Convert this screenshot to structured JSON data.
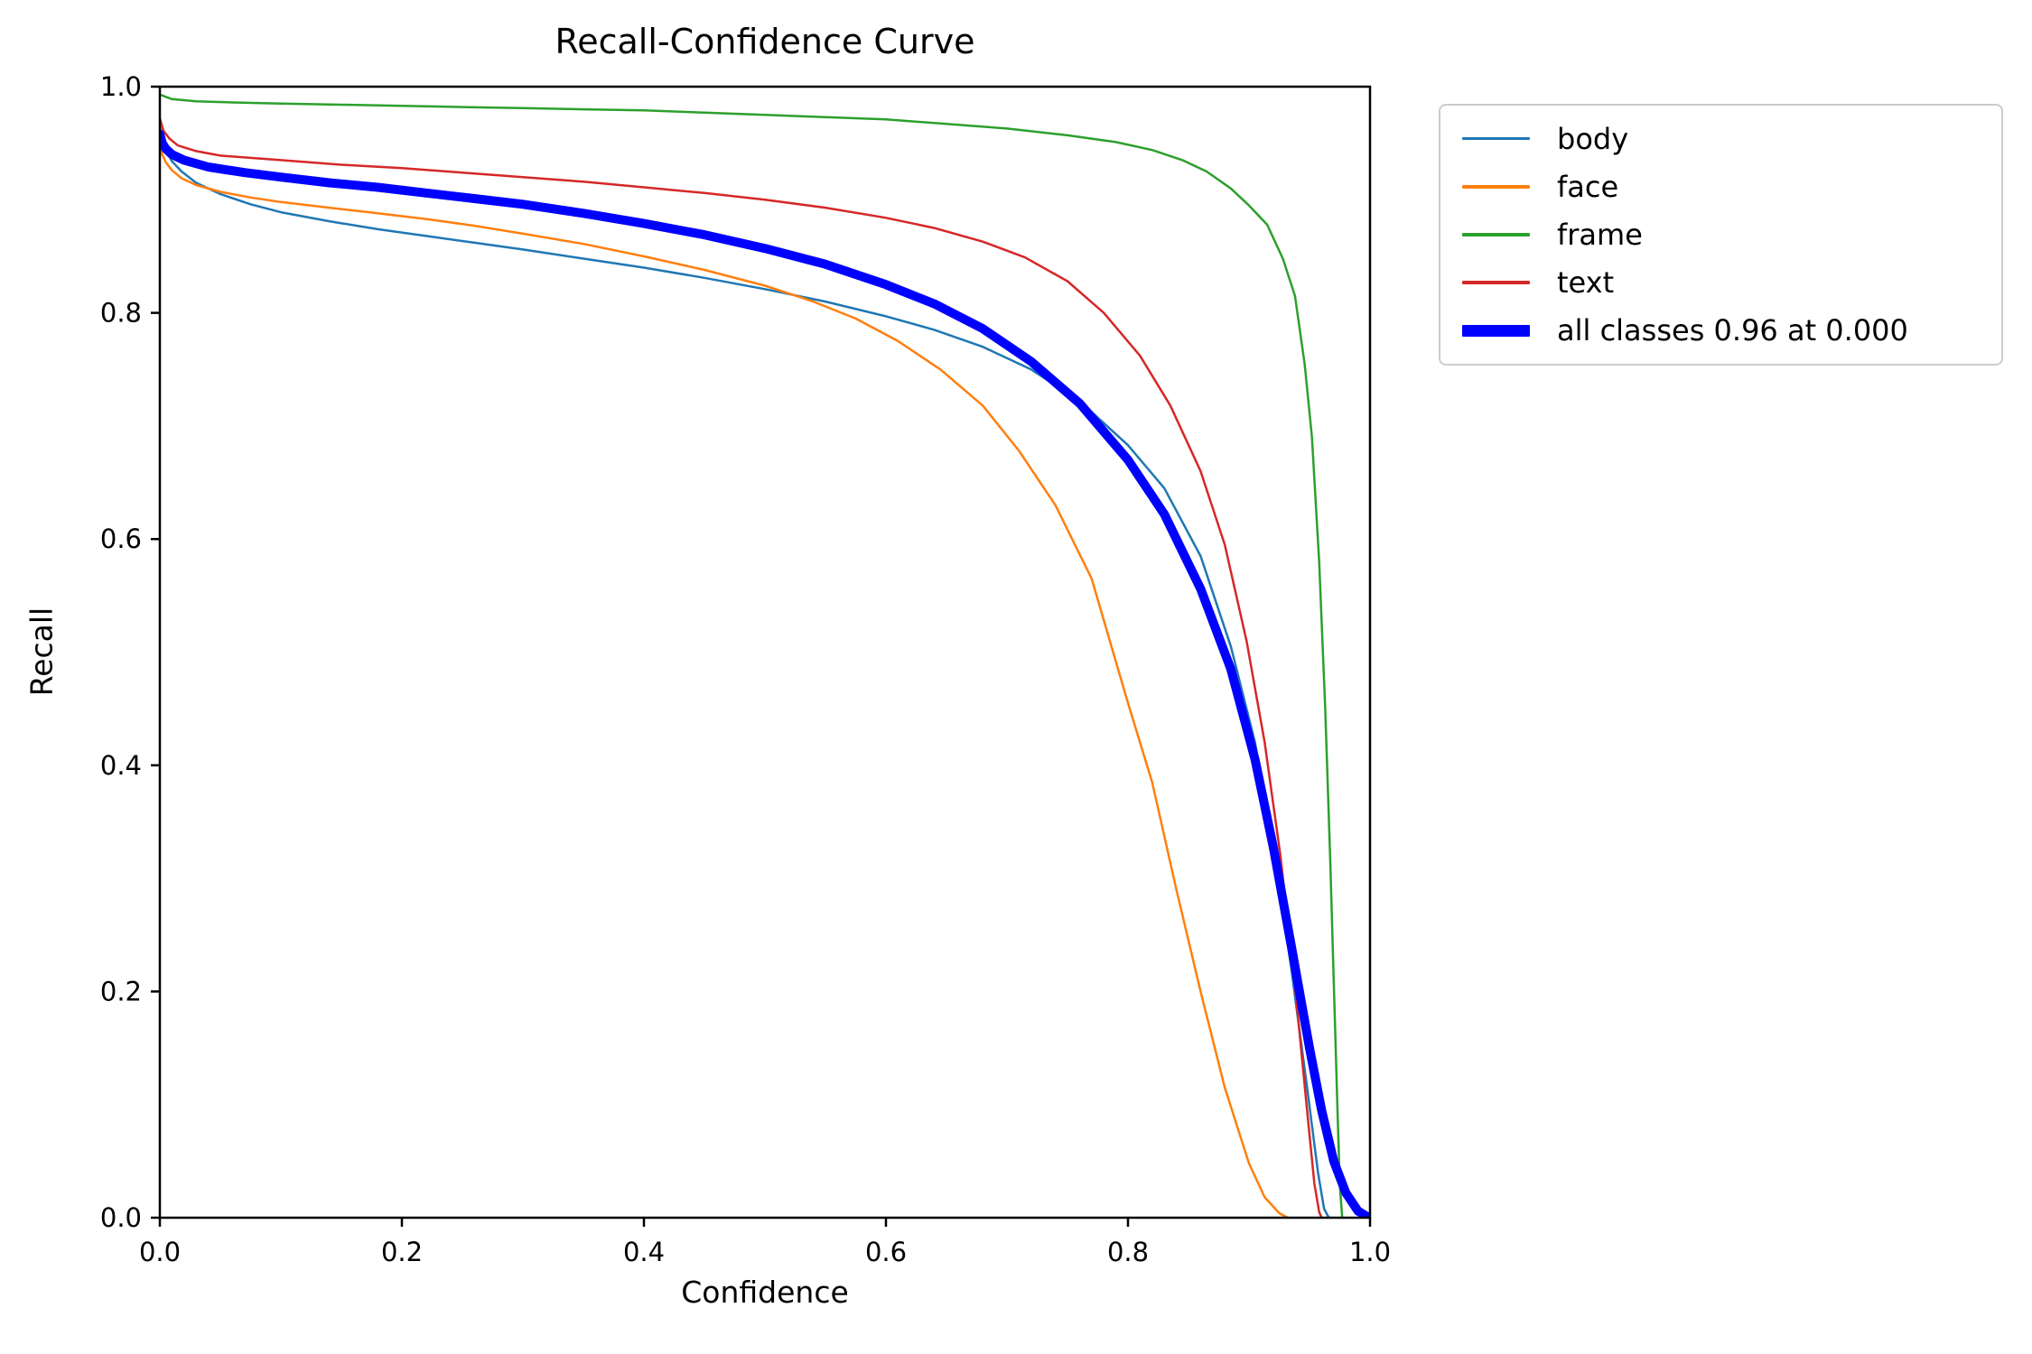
{
  "chart_data": {
    "type": "line",
    "title": "Recall-Confidence Curve",
    "xlabel": "Confidence",
    "ylabel": "Recall",
    "xlim": [
      0.0,
      1.0
    ],
    "ylim": [
      0.0,
      1.0
    ],
    "grid": false,
    "legend_position": "outside-upper-right",
    "xticks": [
      "0.0",
      "0.2",
      "0.4",
      "0.6",
      "0.8",
      "1.0"
    ],
    "yticks": [
      "0.0",
      "0.2",
      "0.4",
      "0.6",
      "0.8",
      "1.0"
    ],
    "frame_color": "#000000",
    "legend_border_color": "#cccccc",
    "series": [
      {
        "name": "body",
        "label": "body",
        "color": "#1f77b4",
        "line_width": 2.5,
        "points": [
          [
            0.0,
            0.965
          ],
          [
            0.002,
            0.952
          ],
          [
            0.005,
            0.944
          ],
          [
            0.01,
            0.934
          ],
          [
            0.018,
            0.925
          ],
          [
            0.03,
            0.915
          ],
          [
            0.05,
            0.905
          ],
          [
            0.075,
            0.896
          ],
          [
            0.1,
            0.889
          ],
          [
            0.14,
            0.881
          ],
          [
            0.18,
            0.874
          ],
          [
            0.22,
            0.868
          ],
          [
            0.26,
            0.862
          ],
          [
            0.3,
            0.856
          ],
          [
            0.35,
            0.848
          ],
          [
            0.4,
            0.84
          ],
          [
            0.45,
            0.831
          ],
          [
            0.5,
            0.821
          ],
          [
            0.55,
            0.81
          ],
          [
            0.6,
            0.797
          ],
          [
            0.64,
            0.785
          ],
          [
            0.68,
            0.77
          ],
          [
            0.72,
            0.75
          ],
          [
            0.76,
            0.722
          ],
          [
            0.8,
            0.683
          ],
          [
            0.83,
            0.645
          ],
          [
            0.86,
            0.585
          ],
          [
            0.885,
            0.505
          ],
          [
            0.905,
            0.42
          ],
          [
            0.92,
            0.33
          ],
          [
            0.935,
            0.22
          ],
          [
            0.948,
            0.115
          ],
          [
            0.957,
            0.04
          ],
          [
            0.962,
            0.008
          ],
          [
            0.966,
            0.0
          ]
        ]
      },
      {
        "name": "face",
        "label": "face",
        "color": "#ff7f0e",
        "line_width": 2.5,
        "points": [
          [
            0.0,
            0.95
          ],
          [
            0.002,
            0.94
          ],
          [
            0.005,
            0.933
          ],
          [
            0.01,
            0.926
          ],
          [
            0.018,
            0.919
          ],
          [
            0.03,
            0.913
          ],
          [
            0.05,
            0.907
          ],
          [
            0.075,
            0.902
          ],
          [
            0.1,
            0.898
          ],
          [
            0.14,
            0.893
          ],
          [
            0.18,
            0.888
          ],
          [
            0.22,
            0.883
          ],
          [
            0.26,
            0.877
          ],
          [
            0.3,
            0.87
          ],
          [
            0.35,
            0.861
          ],
          [
            0.4,
            0.85
          ],
          [
            0.45,
            0.838
          ],
          [
            0.5,
            0.824
          ],
          [
            0.54,
            0.81
          ],
          [
            0.575,
            0.795
          ],
          [
            0.61,
            0.775
          ],
          [
            0.645,
            0.75
          ],
          [
            0.68,
            0.718
          ],
          [
            0.71,
            0.678
          ],
          [
            0.74,
            0.63
          ],
          [
            0.77,
            0.565
          ],
          [
            0.8,
            0.455
          ],
          [
            0.82,
            0.385
          ],
          [
            0.84,
            0.29
          ],
          [
            0.86,
            0.2
          ],
          [
            0.88,
            0.115
          ],
          [
            0.9,
            0.048
          ],
          [
            0.913,
            0.018
          ],
          [
            0.925,
            0.004
          ],
          [
            0.932,
            0.0
          ]
        ]
      },
      {
        "name": "frame",
        "label": "frame",
        "color": "#2ca02c",
        "line_width": 2.5,
        "points": [
          [
            0.0,
            0.993
          ],
          [
            0.01,
            0.989
          ],
          [
            0.03,
            0.987
          ],
          [
            0.06,
            0.986
          ],
          [
            0.1,
            0.985
          ],
          [
            0.15,
            0.984
          ],
          [
            0.2,
            0.983
          ],
          [
            0.25,
            0.982
          ],
          [
            0.3,
            0.981
          ],
          [
            0.35,
            0.98
          ],
          [
            0.4,
            0.979
          ],
          [
            0.45,
            0.977
          ],
          [
            0.5,
            0.975
          ],
          [
            0.55,
            0.973
          ],
          [
            0.6,
            0.971
          ],
          [
            0.65,
            0.967
          ],
          [
            0.7,
            0.963
          ],
          [
            0.75,
            0.957
          ],
          [
            0.79,
            0.951
          ],
          [
            0.82,
            0.944
          ],
          [
            0.845,
            0.935
          ],
          [
            0.865,
            0.925
          ],
          [
            0.885,
            0.91
          ],
          [
            0.9,
            0.895
          ],
          [
            0.915,
            0.878
          ],
          [
            0.928,
            0.848
          ],
          [
            0.938,
            0.815
          ],
          [
            0.946,
            0.755
          ],
          [
            0.952,
            0.69
          ],
          [
            0.958,
            0.58
          ],
          [
            0.963,
            0.45
          ],
          [
            0.967,
            0.32
          ],
          [
            0.97,
            0.21
          ],
          [
            0.973,
            0.1
          ],
          [
            0.975,
            0.03
          ],
          [
            0.977,
            0.0
          ]
        ]
      },
      {
        "name": "text",
        "label": "text",
        "color": "#d62728",
        "line_width": 2.5,
        "points": [
          [
            0.0,
            0.972
          ],
          [
            0.003,
            0.961
          ],
          [
            0.008,
            0.954
          ],
          [
            0.015,
            0.948
          ],
          [
            0.03,
            0.943
          ],
          [
            0.05,
            0.939
          ],
          [
            0.1,
            0.935
          ],
          [
            0.15,
            0.931
          ],
          [
            0.2,
            0.928
          ],
          [
            0.25,
            0.924
          ],
          [
            0.3,
            0.92
          ],
          [
            0.35,
            0.916
          ],
          [
            0.4,
            0.911
          ],
          [
            0.45,
            0.906
          ],
          [
            0.5,
            0.9
          ],
          [
            0.55,
            0.893
          ],
          [
            0.6,
            0.884
          ],
          [
            0.64,
            0.875
          ],
          [
            0.68,
            0.863
          ],
          [
            0.715,
            0.849
          ],
          [
            0.75,
            0.828
          ],
          [
            0.78,
            0.8
          ],
          [
            0.81,
            0.762
          ],
          [
            0.835,
            0.718
          ],
          [
            0.86,
            0.66
          ],
          [
            0.88,
            0.595
          ],
          [
            0.898,
            0.51
          ],
          [
            0.913,
            0.42
          ],
          [
            0.926,
            0.32
          ],
          [
            0.938,
            0.205
          ],
          [
            0.948,
            0.095
          ],
          [
            0.954,
            0.03
          ],
          [
            0.958,
            0.005
          ],
          [
            0.96,
            0.0
          ]
        ]
      },
      {
        "name": "all-classes",
        "label": "all classes 0.96 at 0.000",
        "color": "#0000ff",
        "line_width": 10,
        "points": [
          [
            0.0,
            0.958
          ],
          [
            0.002,
            0.95
          ],
          [
            0.005,
            0.945
          ],
          [
            0.01,
            0.94
          ],
          [
            0.02,
            0.935
          ],
          [
            0.04,
            0.929
          ],
          [
            0.07,
            0.924
          ],
          [
            0.1,
            0.92
          ],
          [
            0.14,
            0.915
          ],
          [
            0.18,
            0.911
          ],
          [
            0.22,
            0.906
          ],
          [
            0.26,
            0.901
          ],
          [
            0.3,
            0.896
          ],
          [
            0.35,
            0.888
          ],
          [
            0.4,
            0.879
          ],
          [
            0.45,
            0.869
          ],
          [
            0.5,
            0.857
          ],
          [
            0.55,
            0.843
          ],
          [
            0.6,
            0.825
          ],
          [
            0.64,
            0.808
          ],
          [
            0.68,
            0.786
          ],
          [
            0.72,
            0.757
          ],
          [
            0.76,
            0.72
          ],
          [
            0.8,
            0.67
          ],
          [
            0.83,
            0.622
          ],
          [
            0.86,
            0.556
          ],
          [
            0.885,
            0.485
          ],
          [
            0.905,
            0.405
          ],
          [
            0.92,
            0.328
          ],
          [
            0.935,
            0.24
          ],
          [
            0.95,
            0.15
          ],
          [
            0.96,
            0.095
          ],
          [
            0.97,
            0.05
          ],
          [
            0.98,
            0.022
          ],
          [
            0.99,
            0.006
          ],
          [
            0.999,
            0.0
          ]
        ]
      }
    ]
  }
}
